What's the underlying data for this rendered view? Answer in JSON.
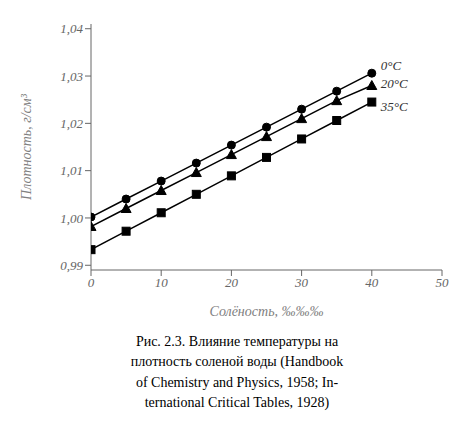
{
  "chart_data": {
    "type": "line",
    "xlabel": "Солёность, ‰‰‰",
    "ylabel": "Плотность, г/см³",
    "xlim": [
      0,
      50
    ],
    "ylim": [
      0.989,
      1.041
    ],
    "xticks": [
      0,
      10,
      20,
      30,
      40,
      50
    ],
    "yticks": [
      {
        "value": 0.99,
        "label": "0,99"
      },
      {
        "value": 1.0,
        "label": "1,00"
      },
      {
        "value": 1.01,
        "label": "1,01"
      },
      {
        "value": 1.02,
        "label": "1,02"
      },
      {
        "value": 1.03,
        "label": "1,03"
      },
      {
        "value": 1.04,
        "label": "1,04"
      }
    ],
    "grid": false,
    "x": [
      0,
      5,
      10,
      15,
      20,
      25,
      30,
      35,
      40
    ],
    "series": [
      {
        "name": "0°C",
        "color": "#000000",
        "marker": "circle",
        "values": [
          1.0002,
          1.004,
          1.0078,
          1.0116,
          1.0154,
          1.0192,
          1.023,
          1.0268,
          1.0306
        ]
      },
      {
        "name": "20°C",
        "color": "#000000",
        "marker": "triangle",
        "values": [
          0.9982,
          1.002,
          1.0058,
          1.0096,
          1.0134,
          1.0172,
          1.021,
          1.0248,
          1.028
        ]
      },
      {
        "name": "35°C",
        "color": "#000000",
        "marker": "square",
        "values": [
          0.9933,
          0.9972,
          1.0011,
          1.005,
          1.0089,
          1.0128,
          1.0167,
          1.0206,
          1.0245
        ]
      }
    ],
    "caption": "Рис. 2.3.  Влияние  температуры  на\nплотность  соленой  воды  (Handbook\nof  Chemistry  and  Physics,  1958;  In-\nternational  Critical  Tables,  1928)"
  }
}
